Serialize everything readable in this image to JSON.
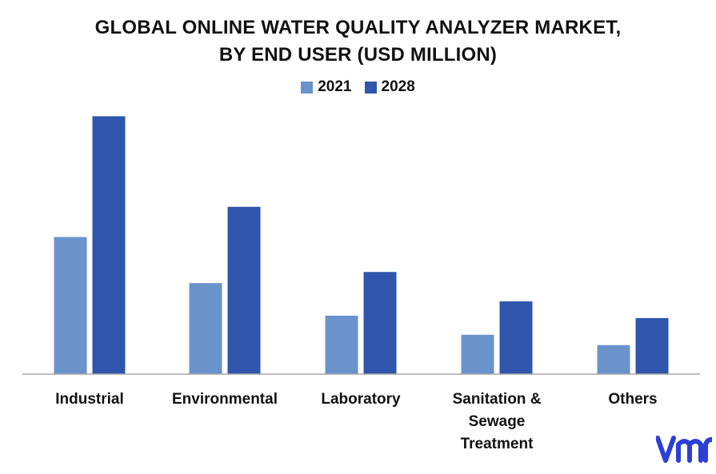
{
  "chart_data": {
    "type": "bar",
    "title_lines": [
      "GLOBAL ONLINE WATER QUALITY ANALYZER MARKET,",
      "BY END USER (USD MILLION)"
    ],
    "categories": [
      [
        "Industrial"
      ],
      [
        "Environmental"
      ],
      [
        "Laboratory"
      ],
      [
        "Sanitation &",
        "Sewage",
        "Treatment"
      ],
      [
        "Others"
      ]
    ],
    "series": [
      {
        "name": "2021",
        "color": "#6a93cc",
        "values": [
          173,
          115,
          74,
          50,
          37
        ]
      },
      {
        "name": "2028",
        "color": "#2f55ad",
        "values": [
          325,
          211,
          129,
          92,
          71
        ]
      }
    ],
    "xlabel": "",
    "ylabel": "",
    "ylim": [
      0,
      340
    ],
    "grid": false,
    "legend_position": "top-center"
  },
  "logo": {
    "name": "vmr-logo-icon",
    "color": "#2c3fd6"
  }
}
